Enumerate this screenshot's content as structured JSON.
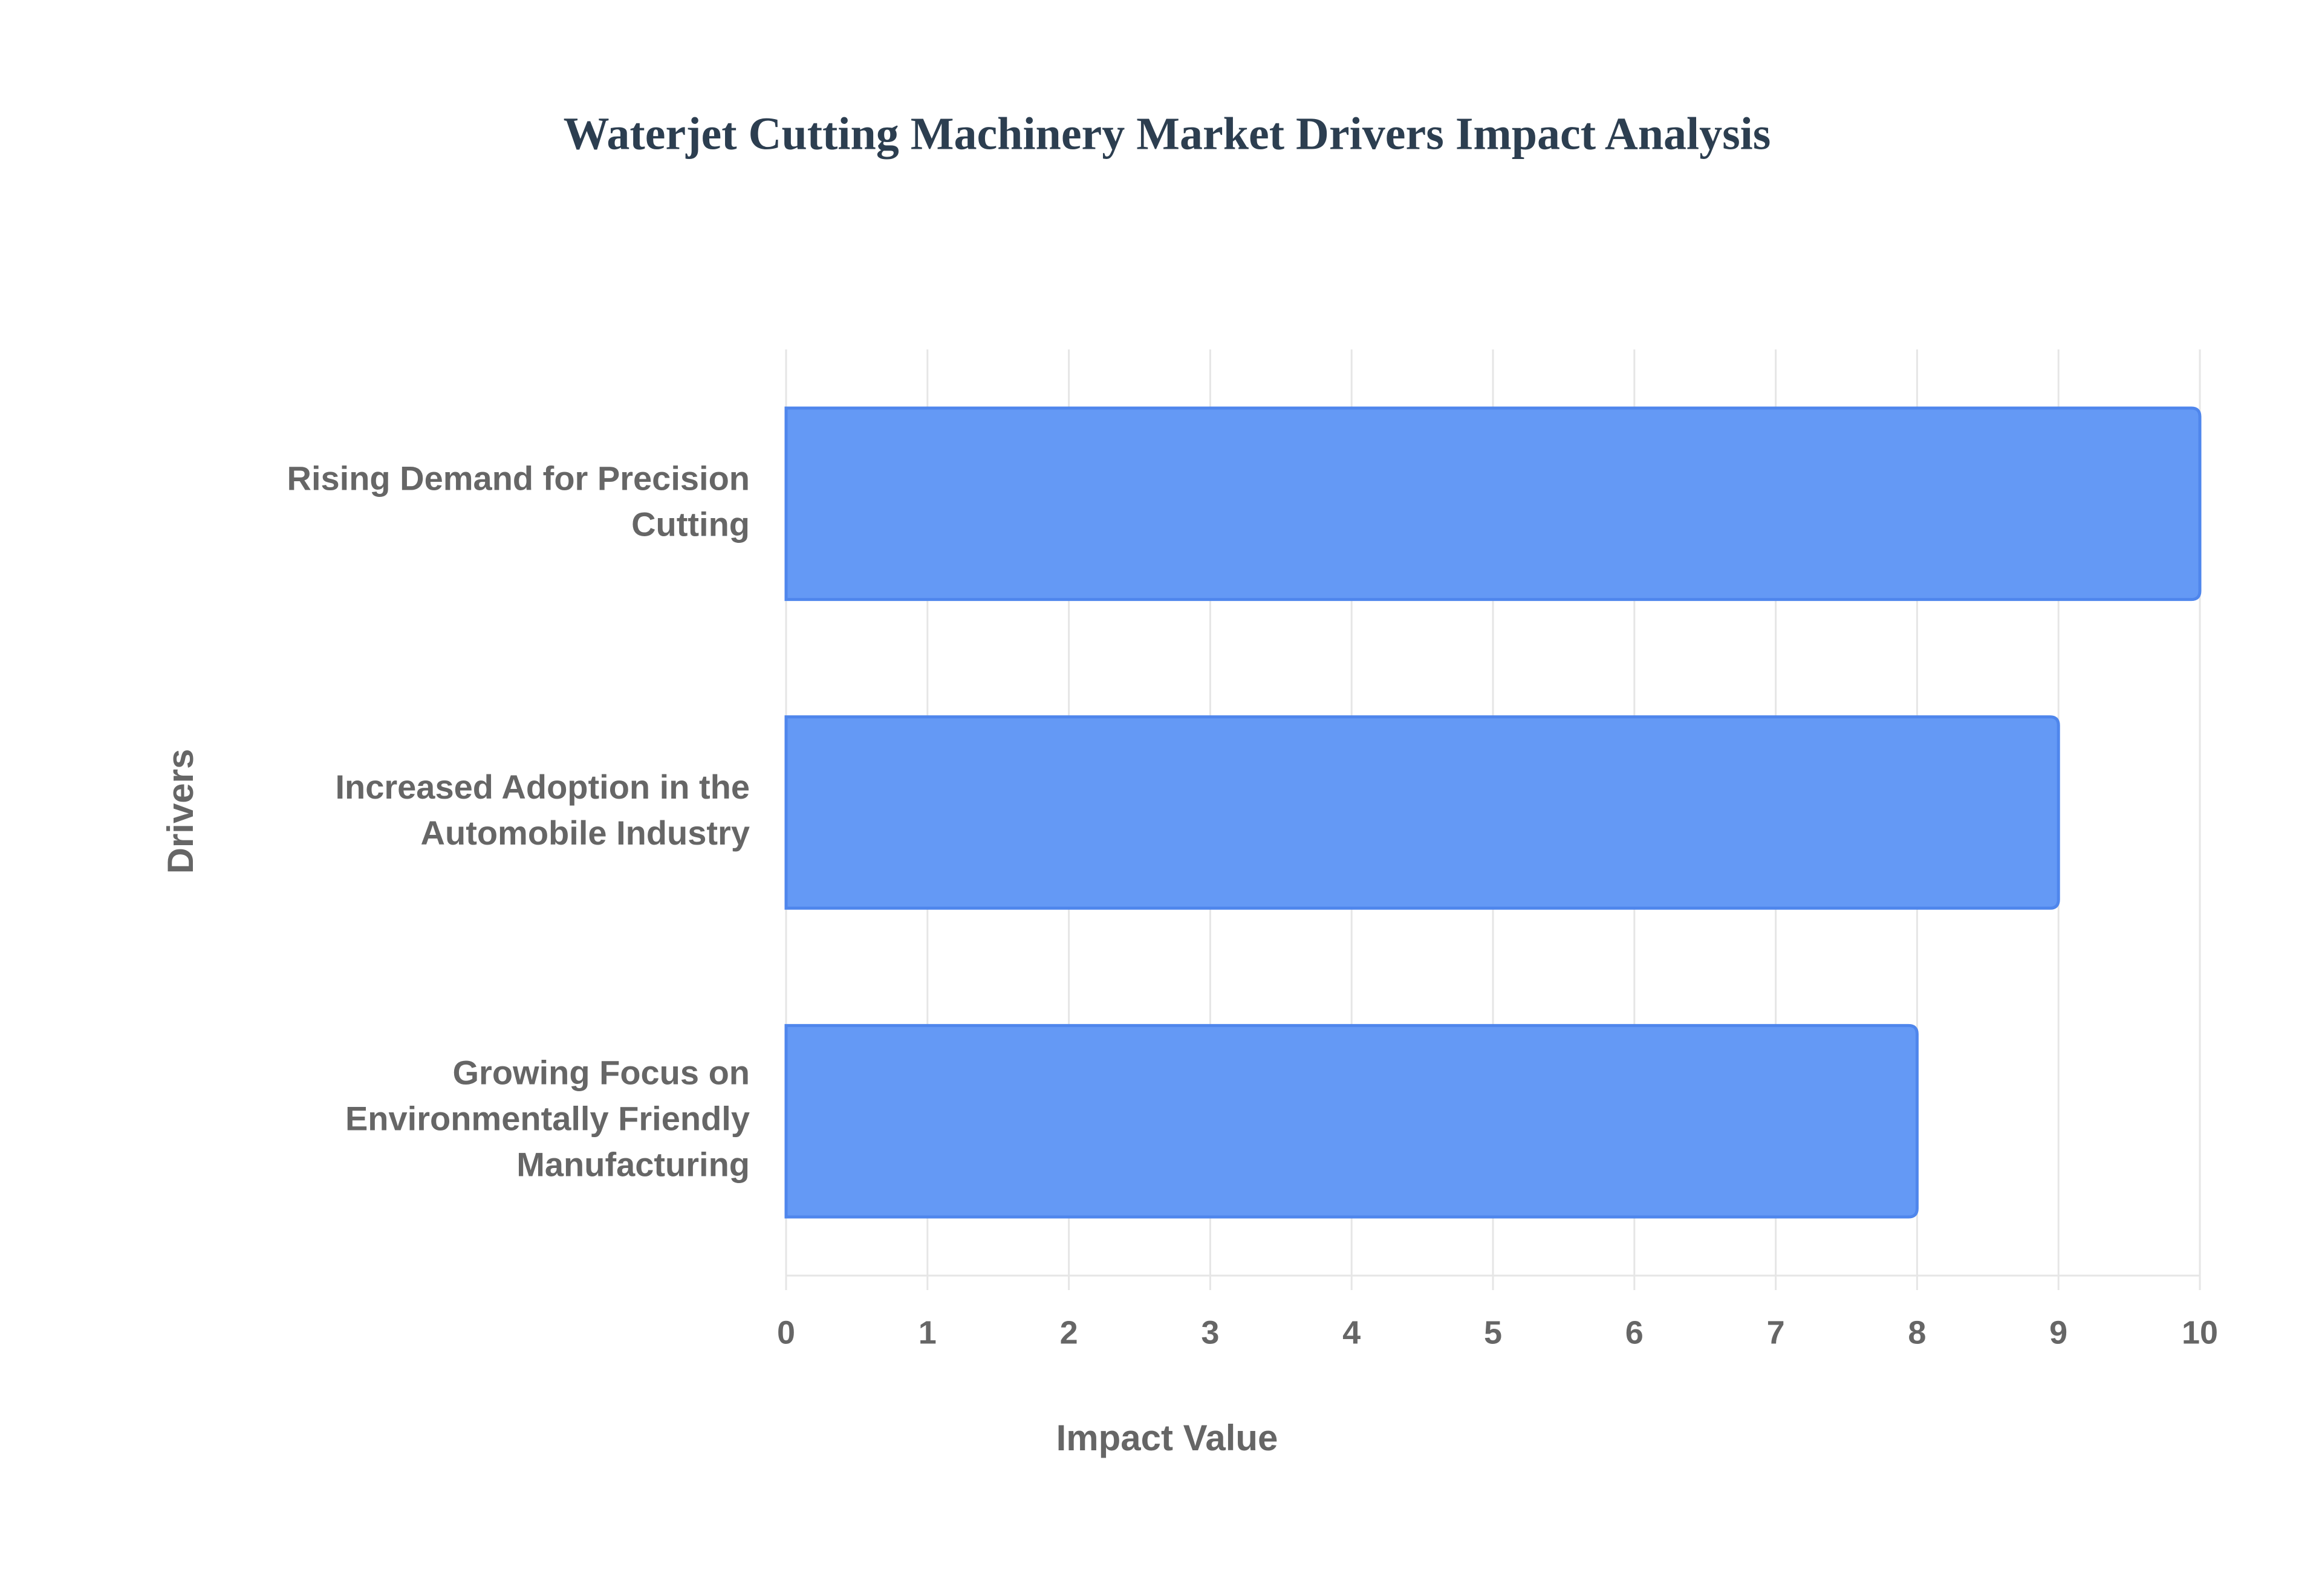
{
  "chart_data": {
    "type": "hbar",
    "title": "Waterjet Cutting Machinery Market Drivers Impact Analysis",
    "x_label": "Impact Value",
    "y_label": "Drivers",
    "categories": [
      "Rising Demand for Precision Cutting",
      "Increased Adoption in the Automobile Industry",
      "Growing Focus on Environmentally Friendly Manufacturing"
    ],
    "values": [
      10,
      9,
      8
    ],
    "color": "#6499f5",
    "xlim": [
      0,
      10
    ],
    "xticks": [
      0,
      1,
      2,
      3,
      4,
      5,
      6,
      7,
      8,
      9,
      10
    ],
    "grid": true
  }
}
